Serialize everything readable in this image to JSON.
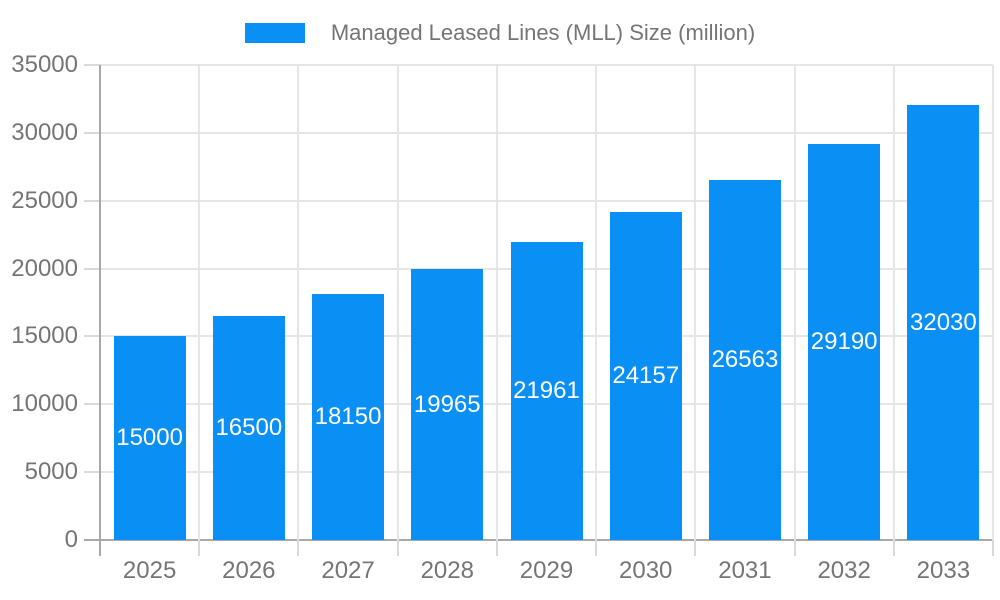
{
  "legend": {
    "label": "Managed Leased Lines (MLL) Size (million)"
  },
  "chart_data": {
    "type": "bar",
    "title": "",
    "categories": [
      "2025",
      "2026",
      "2027",
      "2028",
      "2029",
      "2030",
      "2031",
      "2032",
      "2033"
    ],
    "series": [
      {
        "name": "Managed Leased Lines (MLL) Size (million)",
        "values": [
          15000,
          16500,
          18150,
          19965,
          21961,
          24157,
          26563,
          29190,
          32030
        ]
      }
    ],
    "data_labels": [
      "15000",
      "16500",
      "18150",
      "19965",
      "21961",
      "24157",
      "26563",
      "29190",
      "32030"
    ],
    "y_tick_labels": [
      "0",
      "5000",
      "10000",
      "15000",
      "20000",
      "25000",
      "30000",
      "35000"
    ],
    "xlabel": "",
    "ylabel": "",
    "ylim": [
      0,
      35000
    ],
    "ytick_step": 5000,
    "grid": true,
    "legend_position": "top-center",
    "bar_label_position": "inside-center",
    "colors": {
      "bar": "#0a8ff5",
      "bar_label": "#ffffff",
      "axis_text": "#757575",
      "grid_line": "#e6e6e6",
      "tick_line": "#d9d9d9",
      "axis_line": "#a8a8a8",
      "background": "#ffffff"
    }
  }
}
